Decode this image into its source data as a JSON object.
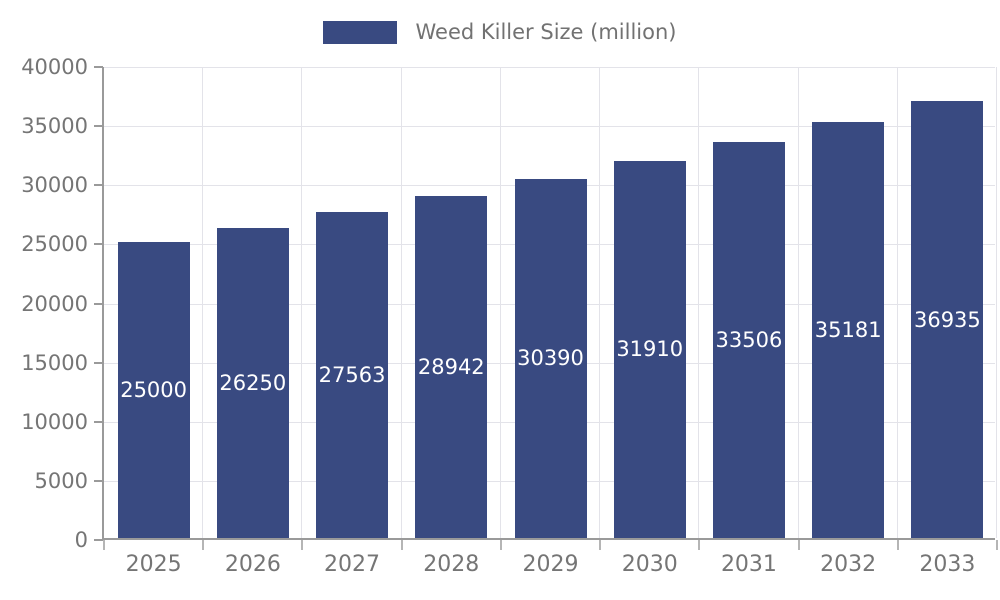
{
  "legend": {
    "label": "Weed Killer Size (million)",
    "swatch_color": "#394a81"
  },
  "chart_data": {
    "type": "bar",
    "title": "",
    "xlabel": "",
    "ylabel": "",
    "categories": [
      "2025",
      "2026",
      "2027",
      "2028",
      "2029",
      "2030",
      "2031",
      "2032",
      "2033"
    ],
    "values": [
      25000,
      26250,
      27563,
      28942,
      30390,
      31910,
      33506,
      35181,
      36935
    ],
    "series_name": "Weed Killer Size (million)",
    "ylim": [
      0,
      40000
    ],
    "yticks": [
      0,
      5000,
      10000,
      15000,
      20000,
      25000,
      30000,
      35000,
      40000
    ],
    "grid": true,
    "legend_position": "top",
    "bar_color": "#394a81",
    "bar_label_color": "#ffffff",
    "axis_text_color": "#757575",
    "grid_color": "#e3e3e9",
    "axis_line_color": "#9a9a9a"
  }
}
